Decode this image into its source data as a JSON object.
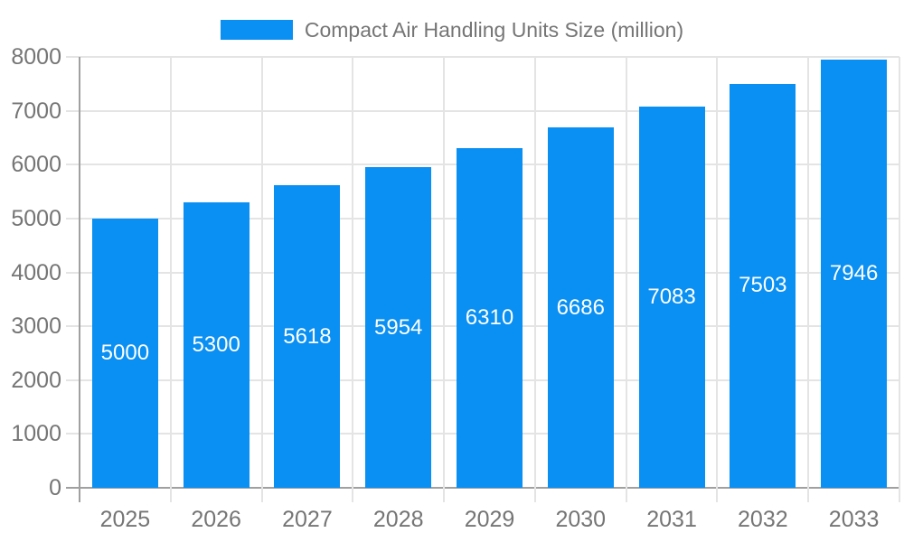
{
  "chart_data": {
    "type": "bar",
    "title": "Compact Air Handling Units Size (million)",
    "categories": [
      "2025",
      "2026",
      "2027",
      "2028",
      "2029",
      "2030",
      "2031",
      "2032",
      "2033"
    ],
    "values": [
      5000,
      5300,
      5618,
      5954,
      6310,
      6686,
      7083,
      7503,
      7946
    ],
    "yticks": [
      0,
      1000,
      2000,
      3000,
      4000,
      5000,
      6000,
      7000,
      8000
    ],
    "ylim": [
      0,
      8000
    ],
    "xlabel": "",
    "ylabel": "",
    "grid": true,
    "legend_position": "top-center",
    "value_label_position": "inside-center",
    "colors": {
      "bar": "#0a8ff2",
      "value_label": "#ffffff",
      "axis_text": "#757575",
      "legend_text": "#757575",
      "grid_line": "#e4e4e4",
      "axis_line": "#a0a0a0",
      "background": "#ffffff"
    }
  }
}
